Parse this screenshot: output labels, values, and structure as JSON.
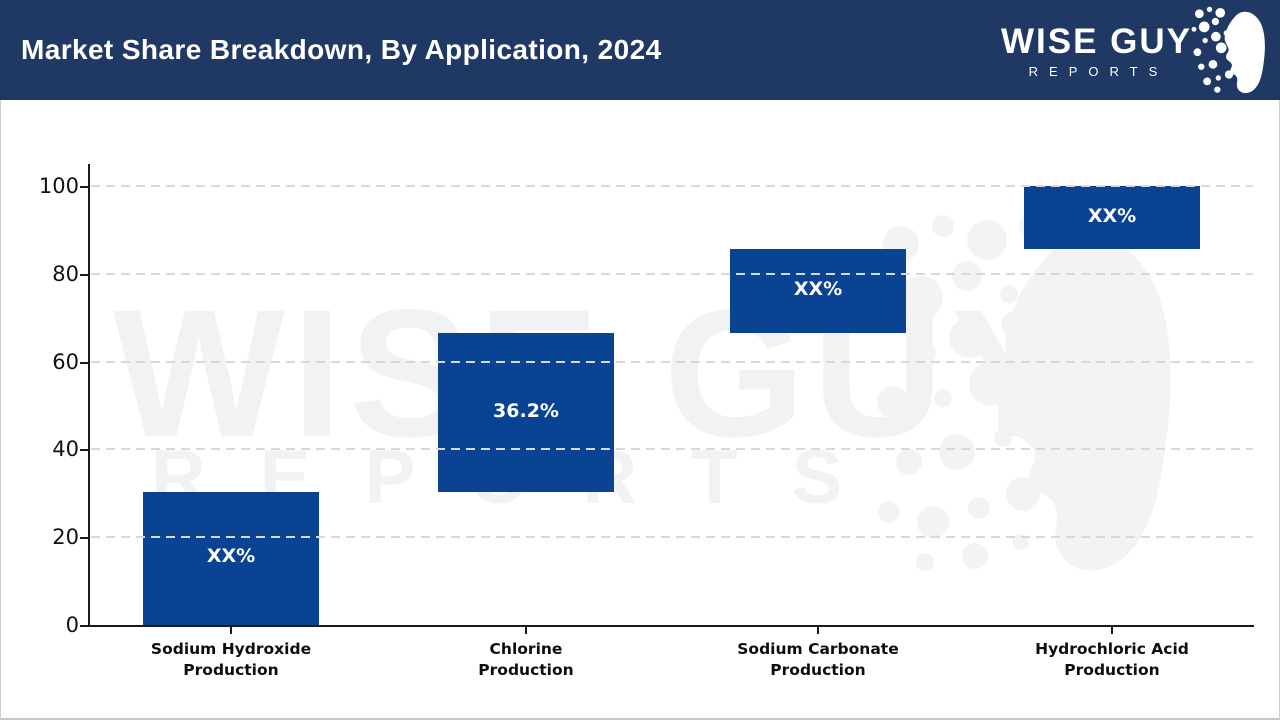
{
  "header": {
    "title": "Market Share Breakdown, By Application, 2024",
    "logo": {
      "line1": "WISE GUY",
      "line2": "REPORTS"
    }
  },
  "watermark": {
    "line1": "WISE GUY",
    "line2": "REPORTS"
  },
  "colors": {
    "header_bg": "#1f3864",
    "bar_blue": "#0a4294",
    "gridline_gray": "#d8d8d8",
    "axis_black": "#1a1a1a",
    "watermark_gray": "#f1f2f4",
    "bar_label_white": "#ffffff"
  },
  "chart_data": {
    "type": "bar",
    "subtype": "waterfall",
    "title": "Market Share Breakdown, By Application, 2024",
    "xlabel": "",
    "ylabel": "",
    "ylim": [
      0,
      100
    ],
    "yticks": [
      0,
      20,
      40,
      60,
      80,
      100
    ],
    "grid": "horizontal-dashed",
    "legend": "none",
    "categories": [
      [
        "Sodium Hydroxide",
        "Production"
      ],
      [
        "Chlorine",
        "Production"
      ],
      [
        "Sodium Carbonate",
        "Production"
      ],
      [
        "Hydrochloric Acid",
        "Production"
      ]
    ],
    "series": [
      {
        "name": "Market Share",
        "segments": [
          {
            "start": 0,
            "end": 30.3,
            "height": 30.3,
            "label": "XX%"
          },
          {
            "start": 30.3,
            "end": 66.5,
            "height": 36.2,
            "label": "36.2%"
          },
          {
            "start": 66.5,
            "end": 85.6,
            "height": 19.1,
            "label": "XX%"
          },
          {
            "start": 85.6,
            "end": 100,
            "height": 14.4,
            "label": "XX%"
          }
        ]
      }
    ]
  }
}
